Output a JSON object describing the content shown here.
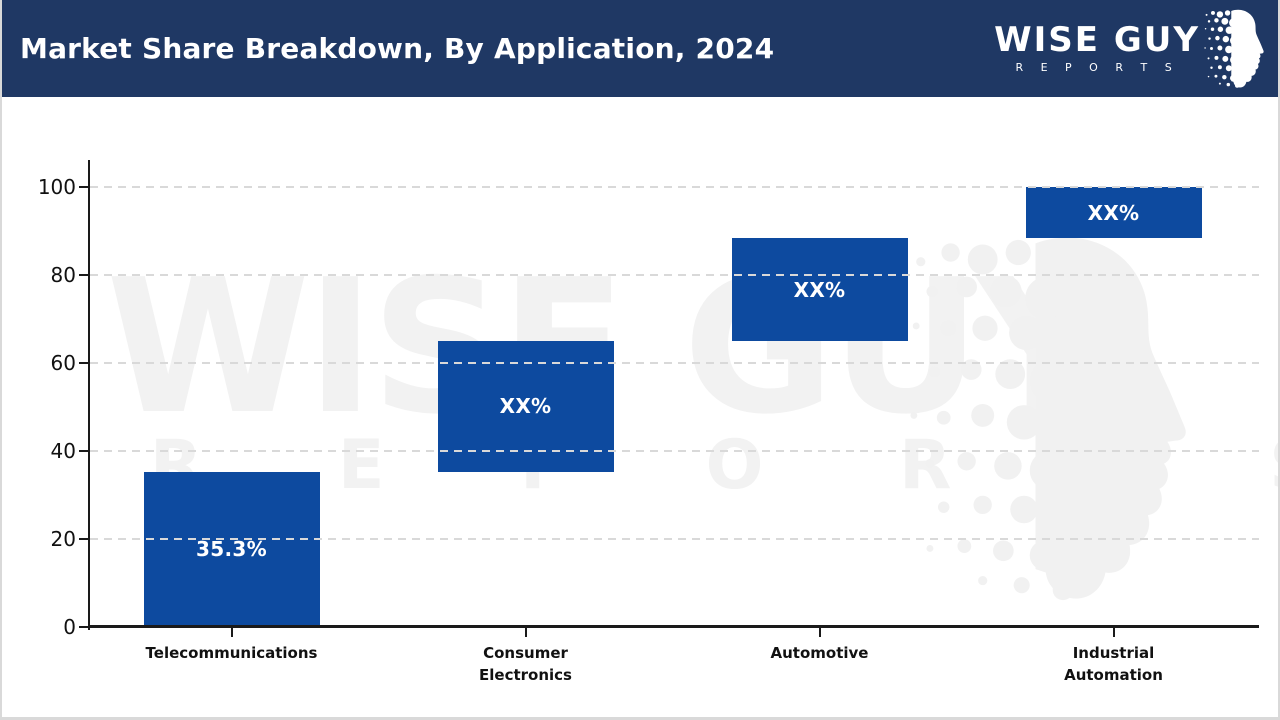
{
  "header": {
    "title": "Market Share Breakdown, By Application, 2024",
    "bg_color": "#1f3864",
    "logo": {
      "wordmark": "WISE GUY",
      "subtext": "R E P O R T S",
      "face_icon": "dot-face-profile-icon"
    }
  },
  "watermark": {
    "wordmark": "WISE GUY",
    "subtext": "R E P O R T S",
    "face_icon": "dot-face-profile-icon",
    "color": "#f2f2f2"
  },
  "chart_data": {
    "type": "bar",
    "subtype": "floating-waterfall",
    "title": "Market Share Breakdown, By Application, 2024",
    "categories": [
      "Telecommunications",
      "Consumer\nElectronics",
      "Automotive",
      "Industrial\nAutomation"
    ],
    "segments": [
      {
        "category": "Telecommunications",
        "start": 0,
        "end": 35.3,
        "label": "35.3%"
      },
      {
        "category": "Consumer Electronics",
        "start": 35.3,
        "end": 65,
        "label": "XX%"
      },
      {
        "category": "Automotive",
        "start": 65,
        "end": 88.3,
        "label": "XX%"
      },
      {
        "category": "Industrial Automation",
        "start": 88.3,
        "end": 100,
        "label": "XX%"
      }
    ],
    "xlabel": "",
    "ylabel": "",
    "ylim": [
      0,
      100
    ],
    "yticks": [
      0,
      20,
      40,
      60,
      80,
      100
    ],
    "grid": "horizontal-dashed",
    "legend": "none",
    "bar_color": "#0d4a9f",
    "bar_label_color": "#ffffff",
    "axis_color": "#1a1a1a",
    "gridline_color": "#d9d9d9"
  }
}
